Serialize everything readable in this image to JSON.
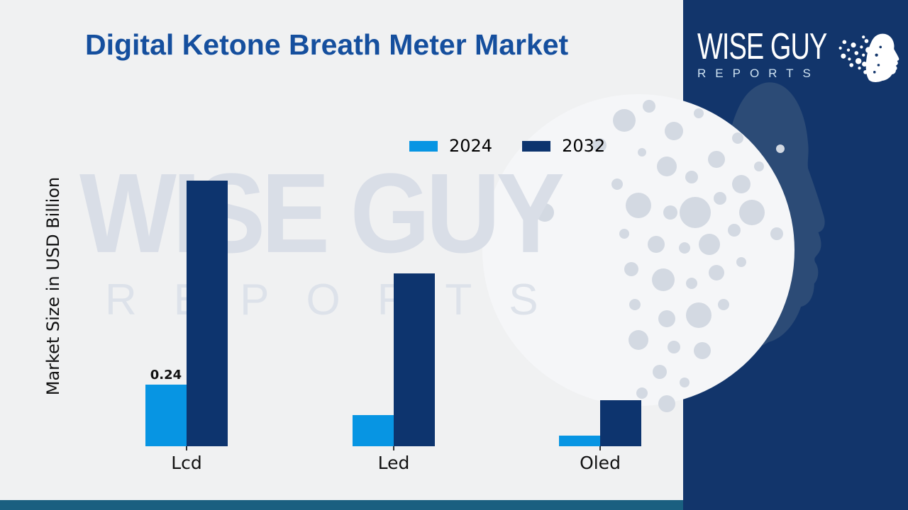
{
  "title": "Digital Ketone Breath Meter Market",
  "logo": {
    "brand_top": "WISE GUY",
    "brand_bottom": "REPORTS"
  },
  "watermark": {
    "line1": "WISE GUY",
    "line2": "REPORTS"
  },
  "chart_data": {
    "type": "bar",
    "title": "Digital Ketone Breath Meter Market",
    "categories": [
      "Lcd",
      "Led",
      "Oled"
    ],
    "series": [
      {
        "name": "2024",
        "color": "#0795e3",
        "values": [
          0.24,
          0.12,
          0.04
        ],
        "labels": [
          "0.24",
          "",
          ""
        ]
      },
      {
        "name": "2032",
        "color": "#0d346e",
        "values": [
          1.03,
          0.67,
          0.18
        ],
        "labels": [
          "",
          "",
          ""
        ]
      }
    ],
    "xlabel": "",
    "ylabel": "Market Size in USD Billion",
    "ylim": [
      0,
      1.1
    ],
    "grid": false,
    "legend_position": "top"
  },
  "colors": {
    "background": "#f0f1f2",
    "title_text": "#154f9e",
    "series_2024": "#0795e3",
    "series_2032": "#0d346e",
    "brand_panel": "#12356b",
    "bottom_accent": "#1a5f80",
    "watermark_text": "#d9dee7"
  }
}
